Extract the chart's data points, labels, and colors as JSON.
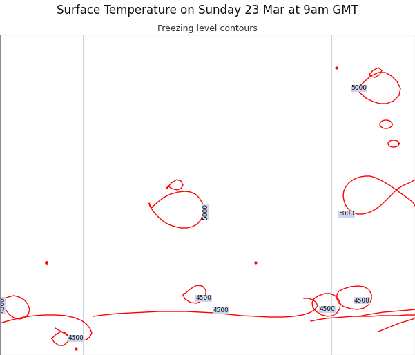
{
  "title": "Surface Temperature on Sunday 23 Mar at 9am GMT",
  "subtitle": "Freezing level contours",
  "map_bg": "#cdd5ee",
  "header_bg": "#ffffff",
  "contour_color": "#ff0000",
  "grid_color": "#b8bedd",
  "title_fontsize": 12,
  "subtitle_fontsize": 9,
  "figsize": [
    6.01,
    5.14
  ],
  "dpi": 100,
  "title_color": "#111111",
  "subtitle_color": "#333333",
  "label_fontsize": 6.5,
  "border_color": "#888899"
}
